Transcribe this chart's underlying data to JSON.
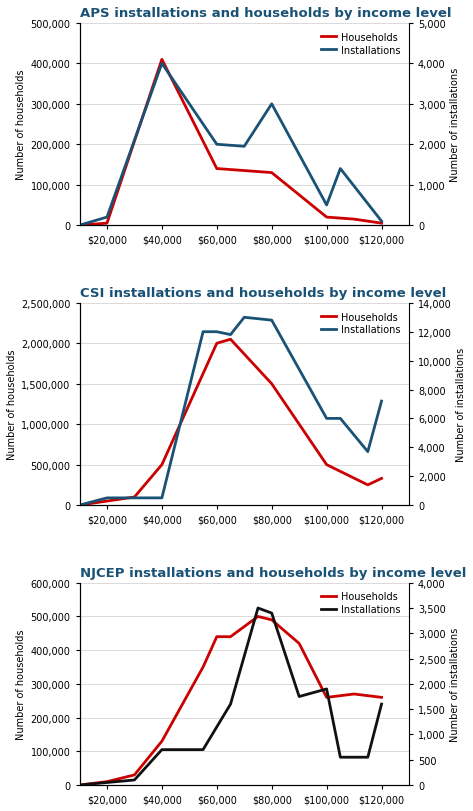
{
  "charts": [
    {
      "title": "APS installations and households by income level",
      "x_labels": [
        "$20,000",
        "$40,000",
        "$60,000",
        "$80,000",
        "$100,000",
        "$120,000"
      ],
      "x_values": [
        20000,
        40000,
        60000,
        80000,
        100000,
        120000
      ],
      "hh_x": [
        10000,
        20000,
        40000,
        60000,
        80000,
        100000,
        110000,
        120000
      ],
      "hh_y": [
        0,
        5000,
        410000,
        140000,
        130000,
        20000,
        15000,
        5000
      ],
      "inst_x": [
        10000,
        20000,
        40000,
        60000,
        70000,
        80000,
        100000,
        105000,
        120000
      ],
      "inst_y": [
        0,
        200,
        4000,
        2000,
        1950,
        3000,
        500,
        1400,
        100
      ],
      "left_ylim": [
        0,
        500000
      ],
      "right_ylim": [
        0,
        5000
      ],
      "left_yticks": [
        0,
        100000,
        200000,
        300000,
        400000,
        500000
      ],
      "right_yticks": [
        0,
        1000,
        2000,
        3000,
        4000,
        5000
      ],
      "left_ylabel": "Number of households",
      "right_ylabel": "Number of installations"
    },
    {
      "title": "CSI installations and households by income level",
      "x_labels": [
        "$20,000",
        "$40,000",
        "$60,000",
        "$80,000",
        "$100,000",
        "$120,000"
      ],
      "x_values": [
        20000,
        40000,
        60000,
        80000,
        100000,
        120000
      ],
      "hh_x": [
        10000,
        20000,
        30000,
        40000,
        60000,
        65000,
        80000,
        100000,
        115000,
        120000
      ],
      "hh_y": [
        0,
        50000,
        100000,
        500000,
        2000000,
        2050000,
        1500000,
        500000,
        250000,
        330000
      ],
      "inst_x": [
        10000,
        20000,
        30000,
        40000,
        55000,
        60000,
        65000,
        70000,
        80000,
        100000,
        105000,
        115000,
        120000
      ],
      "inst_y": [
        0,
        500,
        500,
        500,
        12000,
        12000,
        11800,
        13000,
        12800,
        6000,
        6000,
        3700,
        7200
      ],
      "left_ylim": [
        0,
        2500000
      ],
      "right_ylim": [
        0,
        14000
      ],
      "left_yticks": [
        0,
        500000,
        1000000,
        1500000,
        2000000,
        2500000
      ],
      "right_yticks": [
        0,
        2000,
        4000,
        6000,
        8000,
        10000,
        12000,
        14000
      ],
      "left_ylabel": "Number of households",
      "right_ylabel": "Number of installations"
    },
    {
      "title": "NJCEP installations and households by income level",
      "x_labels": [
        "$20,000",
        "$40,000",
        "$60,000",
        "$80,000",
        "$100,000",
        "$120,000"
      ],
      "x_values": [
        20000,
        40000,
        60000,
        80000,
        100000,
        120000
      ],
      "hh_x": [
        10000,
        20000,
        30000,
        40000,
        55000,
        60000,
        65000,
        75000,
        80000,
        90000,
        100000,
        110000,
        120000
      ],
      "hh_y": [
        0,
        10000,
        30000,
        130000,
        350000,
        440000,
        440000,
        500000,
        490000,
        420000,
        260000,
        270000,
        260000
      ],
      "inst_x": [
        10000,
        20000,
        30000,
        40000,
        55000,
        65000,
        75000,
        80000,
        90000,
        100000,
        105000,
        115000,
        120000
      ],
      "inst_y": [
        0,
        50,
        100,
        700,
        700,
        1600,
        3500,
        3400,
        1750,
        1900,
        550,
        550,
        1600
      ],
      "left_ylim": [
        0,
        600000
      ],
      "right_ylim": [
        0,
        4000
      ],
      "left_yticks": [
        0,
        100000,
        200000,
        300000,
        400000,
        500000,
        600000
      ],
      "right_yticks": [
        0,
        500,
        1000,
        1500,
        2000,
        2500,
        3000,
        3500,
        4000
      ],
      "left_ylabel": "Number of households",
      "right_ylabel": "Number of installations"
    }
  ],
  "household_color": "#cc0000",
  "inst_colors": [
    "#1a5276",
    "#1a5276",
    "#111111"
  ],
  "background_color": "#ffffff",
  "title_color": "#1a5276",
  "grid_color": "#cccccc",
  "line_width": 2.0,
  "figsize": [
    4.73,
    8.12
  ],
  "dpi": 100
}
